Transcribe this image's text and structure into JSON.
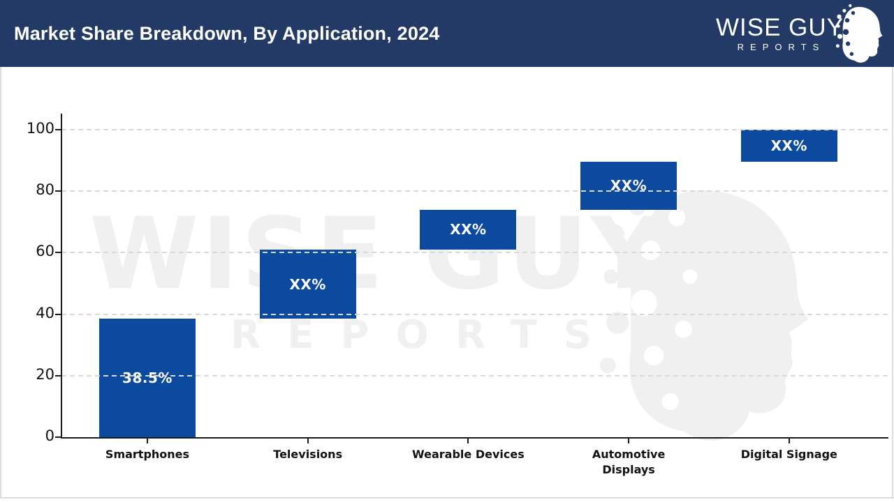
{
  "header": {
    "title": "Market Share Breakdown, By Application, 2024",
    "logo": {
      "wordmark": "WISE GUY",
      "subtitle": "REPORTS"
    }
  },
  "watermark": {
    "wordmark": "WISE GUY",
    "subtitle": "REPORTS"
  },
  "colors": {
    "header_bg": "#233A67",
    "bar": "#0B4A9F",
    "grid": "#D9D9D9",
    "axis": "#1A1A1A",
    "tick_text": "#111111",
    "bar_label_text": "#FFFFFF",
    "watermark": "#F0F0F1",
    "page_bg": "#FFFFFF",
    "frame_border": "#DDDDDD"
  },
  "chart_data": {
    "type": "bar",
    "variant": "waterfall",
    "title": "Market Share Breakdown, By Application, 2024",
    "categories": [
      "Smartphones",
      "Televisions",
      "Wearable Devices",
      "Automotive\nDisplays",
      "Digital Signage"
    ],
    "series": [
      {
        "name": "Market Share (%)",
        "segments": [
          {
            "category": "Smartphones",
            "start": 0,
            "end": 38.5,
            "value": 38.5,
            "label": "38.5%"
          },
          {
            "category": "Televisions",
            "start": 38.5,
            "end": 61,
            "value": 22.5,
            "label": "XX%"
          },
          {
            "category": "Wearable Devices",
            "start": 61,
            "end": 74,
            "value": 13,
            "label": "XX%"
          },
          {
            "category": "Automotive Displays",
            "start": 74,
            "end": 89.5,
            "value": 15.5,
            "label": "XX%"
          },
          {
            "category": "Digital Signage",
            "start": 89.5,
            "end": 100,
            "value": 10.5,
            "label": "XX%"
          }
        ]
      }
    ],
    "xlabel": "",
    "ylabel": "",
    "ylim": [
      0,
      105
    ],
    "yticks": [
      0,
      20,
      40,
      60,
      80,
      100
    ],
    "grid": "horizontal-dashed",
    "legend": "none"
  }
}
